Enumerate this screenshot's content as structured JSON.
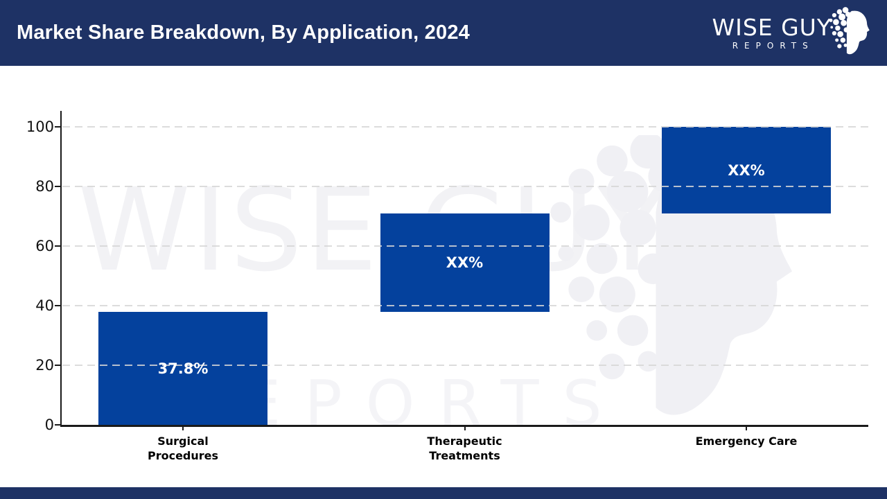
{
  "header": {
    "title": "Market Share Breakdown, By Application, 2024",
    "logo": {
      "name": "WISE GUY",
      "subtitle": "REPORTS"
    }
  },
  "watermark": {
    "name": "WISE GUY",
    "subtitle": "REPORTS"
  },
  "footer": {},
  "chart_data": {
    "type": "bar",
    "subtype": "floating-segment-bars",
    "title": "Market Share Breakdown, By Application, 2024",
    "categories": [
      "Surgical Procedures",
      "Therapeutic Treatments",
      "Emergency Care"
    ],
    "category_lines": [
      [
        "Surgical",
        "Procedures"
      ],
      [
        "Therapeutic",
        "Treatments"
      ],
      [
        "Emergency Care"
      ]
    ],
    "bars": [
      {
        "category": "Surgical Procedures",
        "start": 0,
        "end": 37.8,
        "value_label": "37.8%"
      },
      {
        "category": "Therapeutic Treatments",
        "start": 37.8,
        "end": 70.9,
        "value_label": "XX%"
      },
      {
        "category": "Emergency Care",
        "start": 70.9,
        "end": 100,
        "value_label": "XX%"
      }
    ],
    "xlabel": "",
    "ylabel": "",
    "ylim": [
      0,
      100
    ],
    "yticks": [
      0,
      20,
      40,
      60,
      80,
      100
    ],
    "grid": {
      "horizontal": true,
      "style": "dashed"
    },
    "legend": "none",
    "colors": {
      "bar": "#04419d",
      "header_bg": "#1e3265",
      "footer_bg": "#1e3265",
      "axis": "#1a1a1a",
      "gridline": "#d9d9d9",
      "value_label_text": "#ffffff",
      "watermark": "#f2f2f5"
    }
  }
}
